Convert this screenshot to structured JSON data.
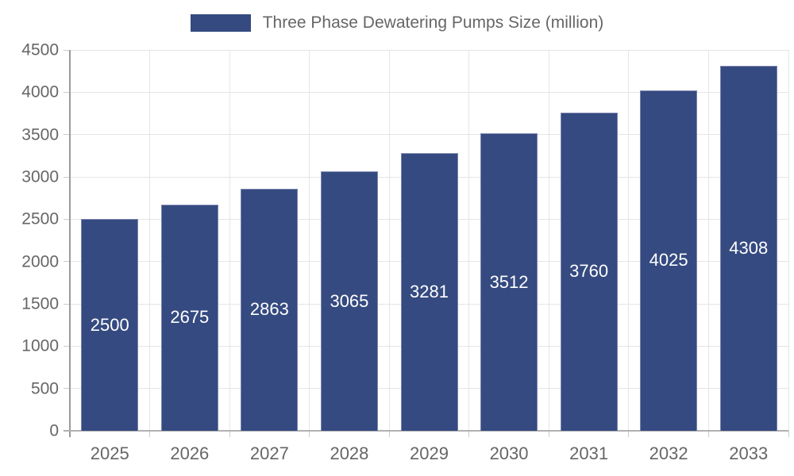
{
  "chart_data": {
    "type": "bar",
    "title": "Three Phase Dewatering Pumps Size (million)",
    "categories": [
      "2025",
      "2026",
      "2027",
      "2028",
      "2029",
      "2030",
      "2031",
      "2032",
      "2033"
    ],
    "values": [
      2500,
      2675,
      2863,
      3065,
      3281,
      3512,
      3760,
      4025,
      4308
    ],
    "xlabel": "",
    "ylabel": "",
    "ylim": [
      0,
      4500
    ],
    "yticks": [
      0,
      500,
      1000,
      1500,
      2000,
      2500,
      3000,
      3500,
      4000,
      4500
    ],
    "grid": true,
    "legend_position": "top",
    "bar_label_position": "middle-of-bar",
    "colors": {
      "bar_fill": "#354A80",
      "bar_border": "#7A84AC",
      "bar_value_label": "#FFFFFF",
      "grid_line": "#E5E5E5",
      "axis_line_y": "#9A9A9A",
      "axis_line_x": "#B0B0B0",
      "tick_mark": "#CCCCCC",
      "tick_label": "#666666",
      "legend_text": "#666666",
      "background": "#FFFFFF"
    }
  }
}
